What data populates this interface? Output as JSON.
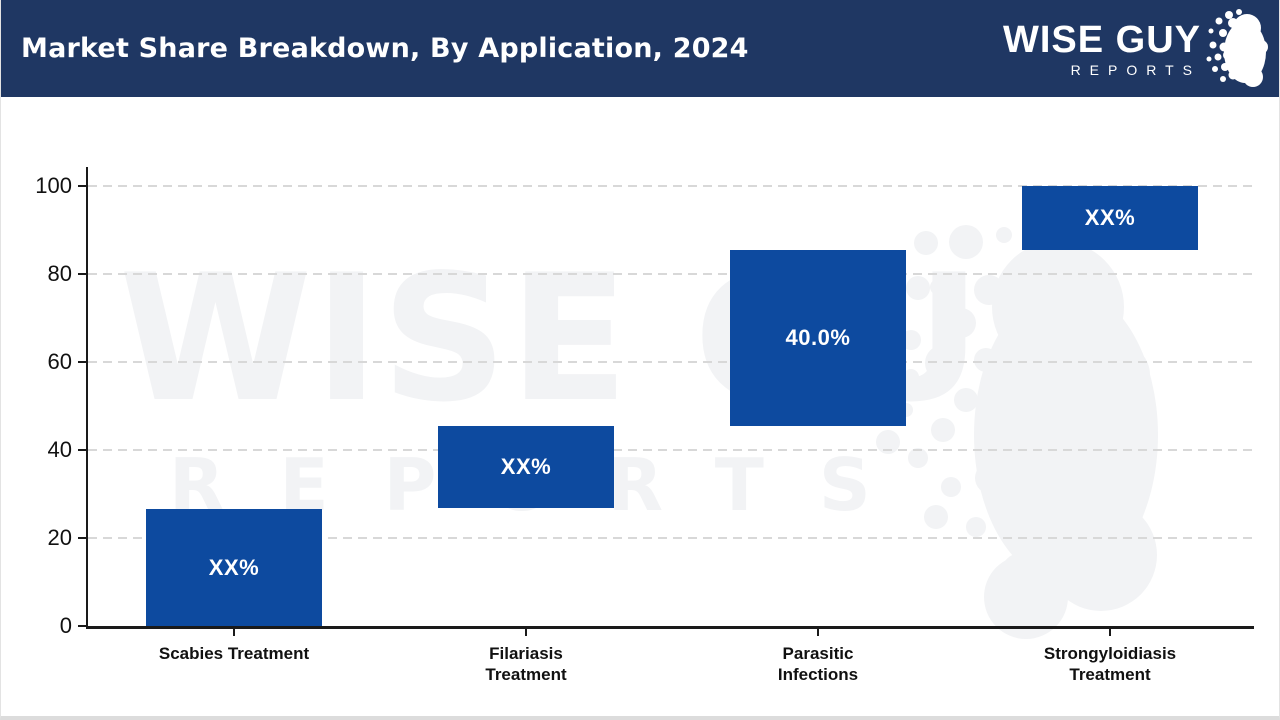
{
  "header": {
    "title": "Market Share Breakdown, By Application, 2024",
    "logo_line1": "WISE GUY",
    "logo_line2": "REPORTS"
  },
  "watermark": {
    "line1": "WISE GU",
    "line2": "REPORTS"
  },
  "chart_data": {
    "type": "bar",
    "variant": "floating-range-waterfall",
    "title": "Market Share Breakdown, By Application, 2024",
    "categories": [
      "Scabies Treatment",
      "Filariasis Treatment",
      "Parasitic Infections",
      "Strongyloidiasis Treatment"
    ],
    "bars": [
      {
        "category": "Scabies Treatment",
        "category_lines": [
          "Scabies Treatment"
        ],
        "start": 0,
        "end": 26.5,
        "label": "XX%"
      },
      {
        "category": "Filariasis Treatment",
        "category_lines": [
          "Filariasis",
          "Treatment"
        ],
        "start": 26.8,
        "end": 45.5,
        "label": "XX%"
      },
      {
        "category": "Parasitic Infections",
        "category_lines": [
          "Parasitic",
          "Infections"
        ],
        "start": 45.5,
        "end": 85.5,
        "label": "40.0%",
        "value": 40.0
      },
      {
        "category": "Strongyloidiasis Treatment",
        "category_lines": [
          "Strongyloidiasis",
          "Treatment"
        ],
        "start": 85.5,
        "end": 100,
        "label": "XX%"
      }
    ],
    "y_axis": {
      "ticks": [
        0,
        20,
        40,
        60,
        80,
        100
      ],
      "min": 0,
      "max": 105
    },
    "ylabel": "",
    "xlabel": "",
    "grid": true,
    "legend": false,
    "bar_color": "#0d4a9f",
    "gridline_color": "#d8d8d8",
    "axis_color": "#1a1a1a",
    "header_bg_color": "#1f3763",
    "watermark_color": "#f2f3f5"
  }
}
